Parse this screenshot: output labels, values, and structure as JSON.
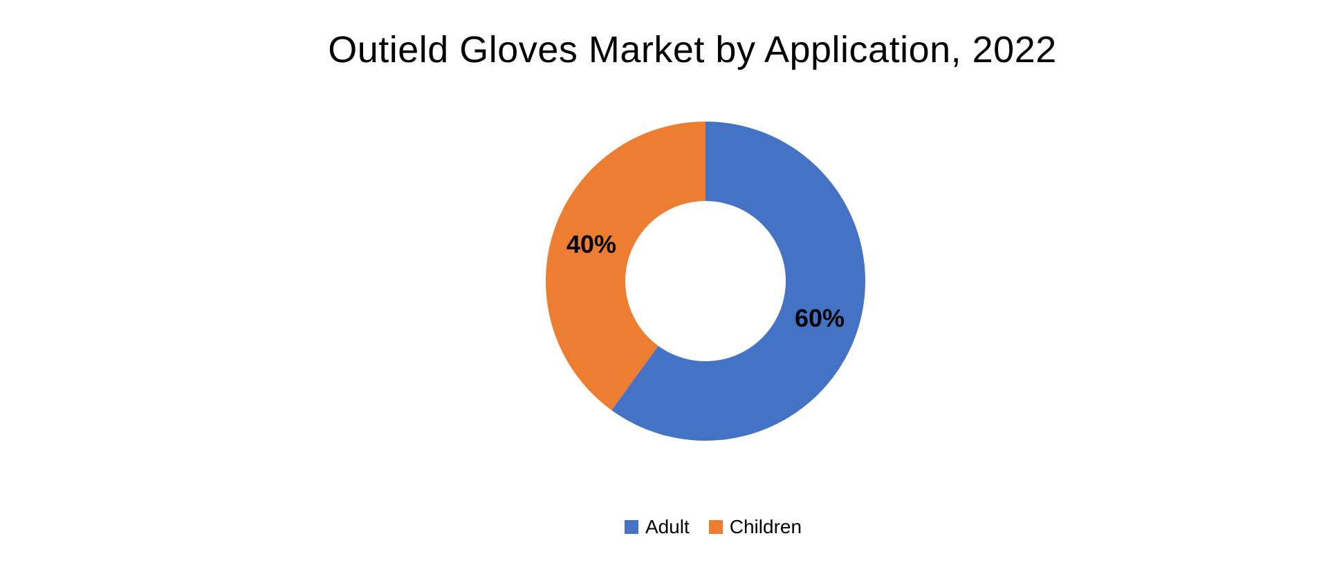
{
  "page": {
    "background_color": "#ffffff"
  },
  "chart_data": {
    "type": "pie",
    "subtype": "donut",
    "title": "Outield Gloves Market by Application, 2022",
    "categories": [
      "Adult",
      "Children"
    ],
    "values": [
      60,
      40
    ],
    "segments": [
      {
        "label": "Adult",
        "value": 60,
        "percent_label": "60%",
        "color": "#4472C4"
      },
      {
        "label": "Children",
        "value": 40,
        "percent_label": "40%",
        "color": "#ED7D31"
      }
    ],
    "start_angle_deg": 0,
    "clockwise": true,
    "inner_radius_ratio": 0.5,
    "data_label_color": "#000000",
    "legend_position": "bottom",
    "grid": false
  }
}
